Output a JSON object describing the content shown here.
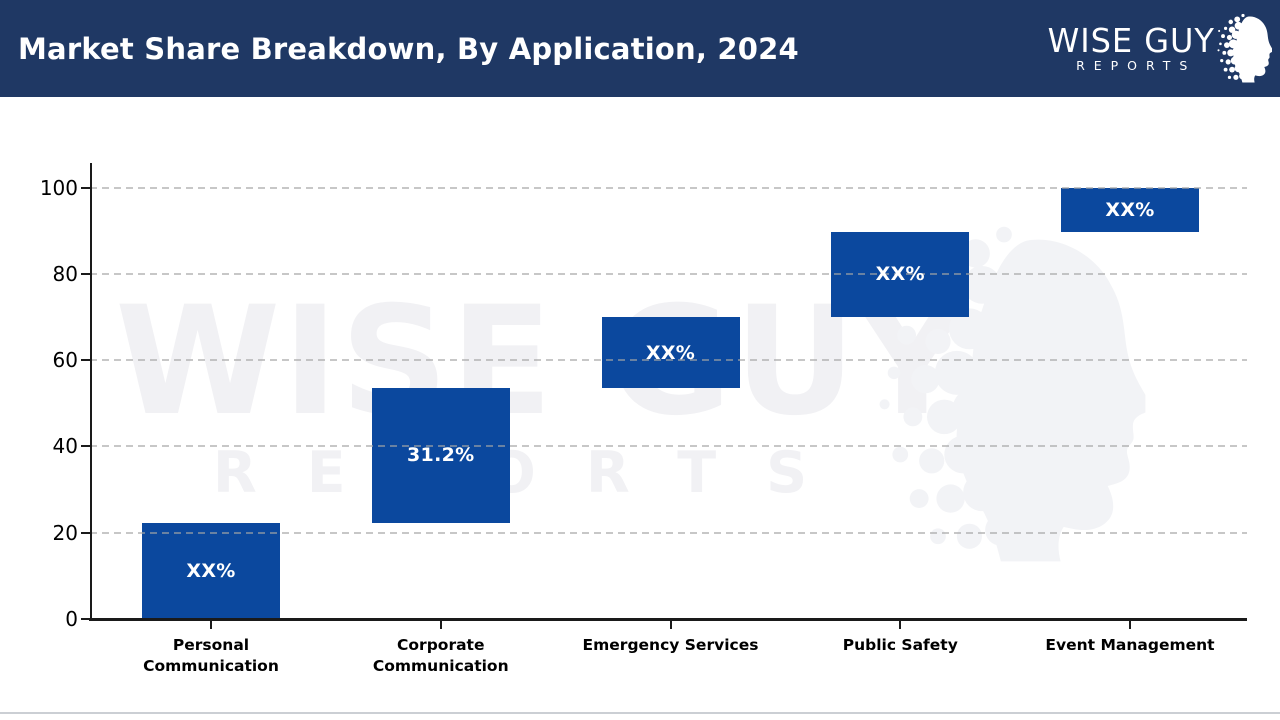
{
  "header": {
    "title": "Market Share Breakdown, By Application, 2024",
    "logo": {
      "line1": "WISE GUY",
      "line2": "REPORTS"
    }
  },
  "watermark": {
    "line1": "WISE GUY",
    "line2": "REPORTS"
  },
  "colors": {
    "header_bg": "#1f3864",
    "bar": "#0b489e",
    "grid": "#a5a5a5",
    "axis": "#1a1a1a",
    "watermark_text": "#f1f1f4",
    "watermark_head": "#f2f3f6",
    "bottom_rule": "#cbcfd4"
  },
  "chart_data": {
    "type": "bar",
    "subtype": "waterfall-floating-bars",
    "title": "Market Share Breakdown, By Application, 2024",
    "xlabel": "",
    "ylabel": "",
    "ylim": [
      0,
      105
    ],
    "y_ticks": [
      0,
      20,
      40,
      60,
      80,
      100
    ],
    "grid": "horizontal dashed, drawn over bars",
    "legend": "none",
    "categories": [
      "Personal Communication",
      "Corporate Communication",
      "Emergency Services",
      "Public Safety",
      "Event Management"
    ],
    "category_label_lines": [
      [
        "Personal",
        "Communication"
      ],
      [
        "Corporate",
        "Communication"
      ],
      [
        "Emergency Services"
      ],
      [
        "Public Safety"
      ],
      [
        "Event Management"
      ]
    ],
    "segments": [
      {
        "category": "Personal Communication",
        "label": "XX%",
        "start": 0,
        "end": 22.3,
        "height_est": 22.3
      },
      {
        "category": "Corporate Communication",
        "label": "31.2%",
        "start": 22.3,
        "end": 53.5,
        "height_est": 31.2
      },
      {
        "category": "Emergency Services",
        "label": "XX%",
        "start": 53.5,
        "end": 70.0,
        "height_est": 16.5
      },
      {
        "category": "Public Safety",
        "label": "XX%",
        "start": 70.0,
        "end": 89.8,
        "height_est": 19.8
      },
      {
        "category": "Event Management",
        "label": "XX%",
        "start": 89.8,
        "end": 100.0,
        "height_est": 10.2
      }
    ]
  }
}
